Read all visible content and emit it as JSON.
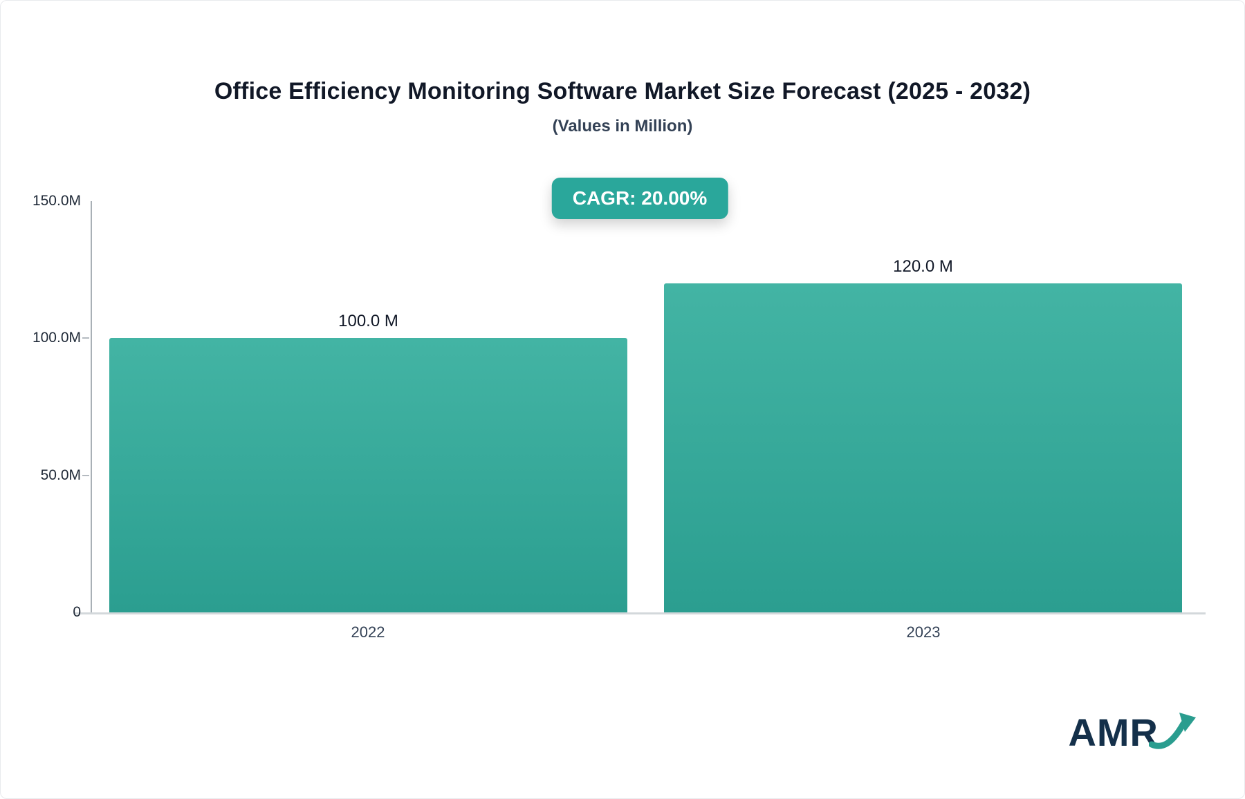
{
  "header": {
    "title": "Office Efficiency Monitoring Software Market Size Forecast (2025 - 2032)",
    "subtitle": "(Values in Million)"
  },
  "badge": {
    "label": "CAGR: 20.00%",
    "background_color": "#2aa79b",
    "text_color": "#ffffff"
  },
  "chart_data": {
    "type": "bar",
    "title": "Office Efficiency Monitoring Software Market Size Forecast (2025 - 2032)",
    "subtitle": "(Values in Million)",
    "categories": [
      "2022",
      "2023"
    ],
    "values": [
      100.0,
      120.0
    ],
    "value_labels": [
      "100.0 M",
      "120.0 M"
    ],
    "y_ticks": [
      "150.0M",
      "100.0M",
      "50.0M",
      "0"
    ],
    "y_tick_values": [
      150,
      100,
      50,
      0
    ],
    "ylim": [
      0,
      150
    ],
    "xlabel": "",
    "ylabel": "",
    "grid": false,
    "legend": "none",
    "bar_color_top": "#43b4a4",
    "bar_color_bottom": "#2b9e90"
  },
  "logo": {
    "text": "AMR",
    "arrow_icon": "trend-up-arrow",
    "text_color": "#14304a",
    "arrow_color": "#2a9d8f"
  }
}
